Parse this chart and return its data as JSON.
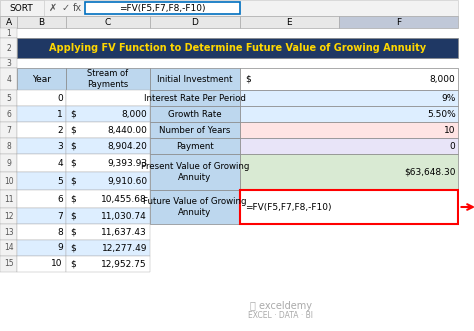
{
  "title": "Applying FV Function to Determine Future Value of Growing Annuity",
  "title_bg": "#1F3864",
  "title_color": "#FFD700",
  "formula_bar_text": "=FV(F5,F7,F8,-F10)",
  "col_headers": [
    "A",
    "B",
    "C",
    "D",
    "E",
    "F"
  ],
  "left_table_header_bg": "#BDD7EE",
  "left_table_row_bg": "#FFFFFF",
  "left_table_alt_bg": "#DDEEFF",
  "left_table": {
    "headers": [
      "Year",
      "Stream of\nPayments"
    ],
    "rows": [
      [
        "0",
        "",
        ""
      ],
      [
        "1",
        "$",
        "8,000"
      ],
      [
        "2",
        "$",
        "8,440.00"
      ],
      [
        "3",
        "$",
        "8,904.20"
      ],
      [
        "4",
        "$",
        "9,393.93"
      ],
      [
        "5",
        "$",
        "9,910.60"
      ],
      [
        "6",
        "$",
        "10,455.68"
      ],
      [
        "7",
        "$",
        "11,030.74"
      ],
      [
        "8",
        "$",
        "11,637.43"
      ],
      [
        "9",
        "$",
        "12,277.49"
      ],
      [
        "10",
        "$",
        "12,952.75"
      ]
    ]
  },
  "right_table": {
    "rows": [
      {
        "label": "Initial Investment",
        "dollar": "$",
        "value": "8,000",
        "label_bg": "#BDD7EE",
        "value_bg": "#FFFFFF"
      },
      {
        "label": "Interest Rate Per Period",
        "dollar": "",
        "value": "9%",
        "label_bg": "#BDD7EE",
        "value_bg": "#DDEEFF"
      },
      {
        "label": "Growth Rate",
        "dollar": "",
        "value": "5.50%",
        "label_bg": "#BDD7EE",
        "value_bg": "#DDEEFF"
      },
      {
        "label": "Number of Years",
        "dollar": "",
        "value": "10",
        "label_bg": "#BDD7EE",
        "value_bg": "#FFE4E4"
      },
      {
        "label": "Payment",
        "dollar": "",
        "value": "0",
        "label_bg": "#BDD7EE",
        "value_bg": "#E8E4F8"
      }
    ],
    "pv_label": "Present Value of Growing\nAnnuity",
    "pv_value": "$63,648.30",
    "pv_label_bg": "#BDD7EE",
    "pv_value_bg": "#D9EAD3",
    "fv_label": "Future Value of Growing\nAnnuity",
    "fv_value": "=FV(F5,F7,F8,-F10)",
    "fv_label_bg": "#BDD7EE",
    "fv_value_bg": "#FFFFFF",
    "fv_value_color": "#000000",
    "fv_border_color": "#FF0000"
  },
  "arrow_color": "#FF0000",
  "grid_color": "#AAAAAA",
  "cell_text_color": "#000000",
  "formula_bar_bg": "#FFFFFF",
  "excel_header_bg": "#F2F2F2",
  "excel_header_color": "#000000"
}
